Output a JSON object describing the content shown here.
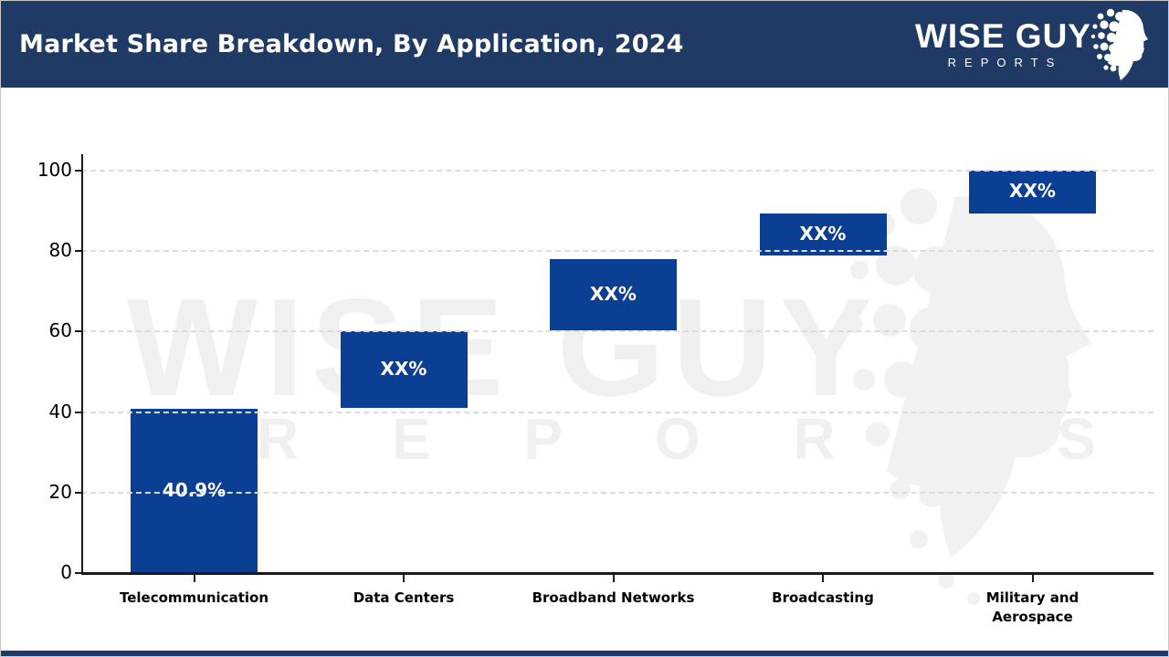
{
  "header": {
    "title": "Market Share Breakdown, By Application, 2024",
    "logo": {
      "line1": "WISE GUY",
      "line2": "REPORTS"
    },
    "bg_color": "#203a66"
  },
  "watermark": {
    "line1": "WISE GUY",
    "line2": "R E P O R T S"
  },
  "footer": {
    "bg_color": "#203a66"
  },
  "chart_data": {
    "type": "bar",
    "subtype": "waterfall",
    "title": "Market Share Breakdown, By Application, 2024",
    "xlabel": "",
    "ylabel": "",
    "categories": [
      "Telecommunication",
      "Data Centers",
      "Broadband Networks",
      "Broadcasting",
      "Military and Aerospace"
    ],
    "segments": [
      {
        "category": "Telecommunication",
        "start": 0,
        "end": 40.9,
        "label": "40.9%"
      },
      {
        "category": "Data Centers",
        "start": 41.0,
        "end": 60.2,
        "label": "XX%"
      },
      {
        "category": "Broadband Networks",
        "start": 60.4,
        "end": 78.0,
        "label": "XX%"
      },
      {
        "category": "Broadcasting",
        "start": 78.9,
        "end": 89.3,
        "label": "XX%"
      },
      {
        "category": "Military and Aerospace",
        "start": 89.4,
        "end": 100,
        "label": "XX%"
      }
    ],
    "yticks": [
      0,
      20,
      40,
      60,
      80,
      100
    ],
    "ylim": [
      0,
      104
    ],
    "grid": "horizontal-dashed",
    "legend": "none",
    "bar_color": "#0b3f94",
    "bar_label_color": "#ffffff",
    "axis_color": "#1a1a1a",
    "gridline_color": "#dcdcdc"
  }
}
